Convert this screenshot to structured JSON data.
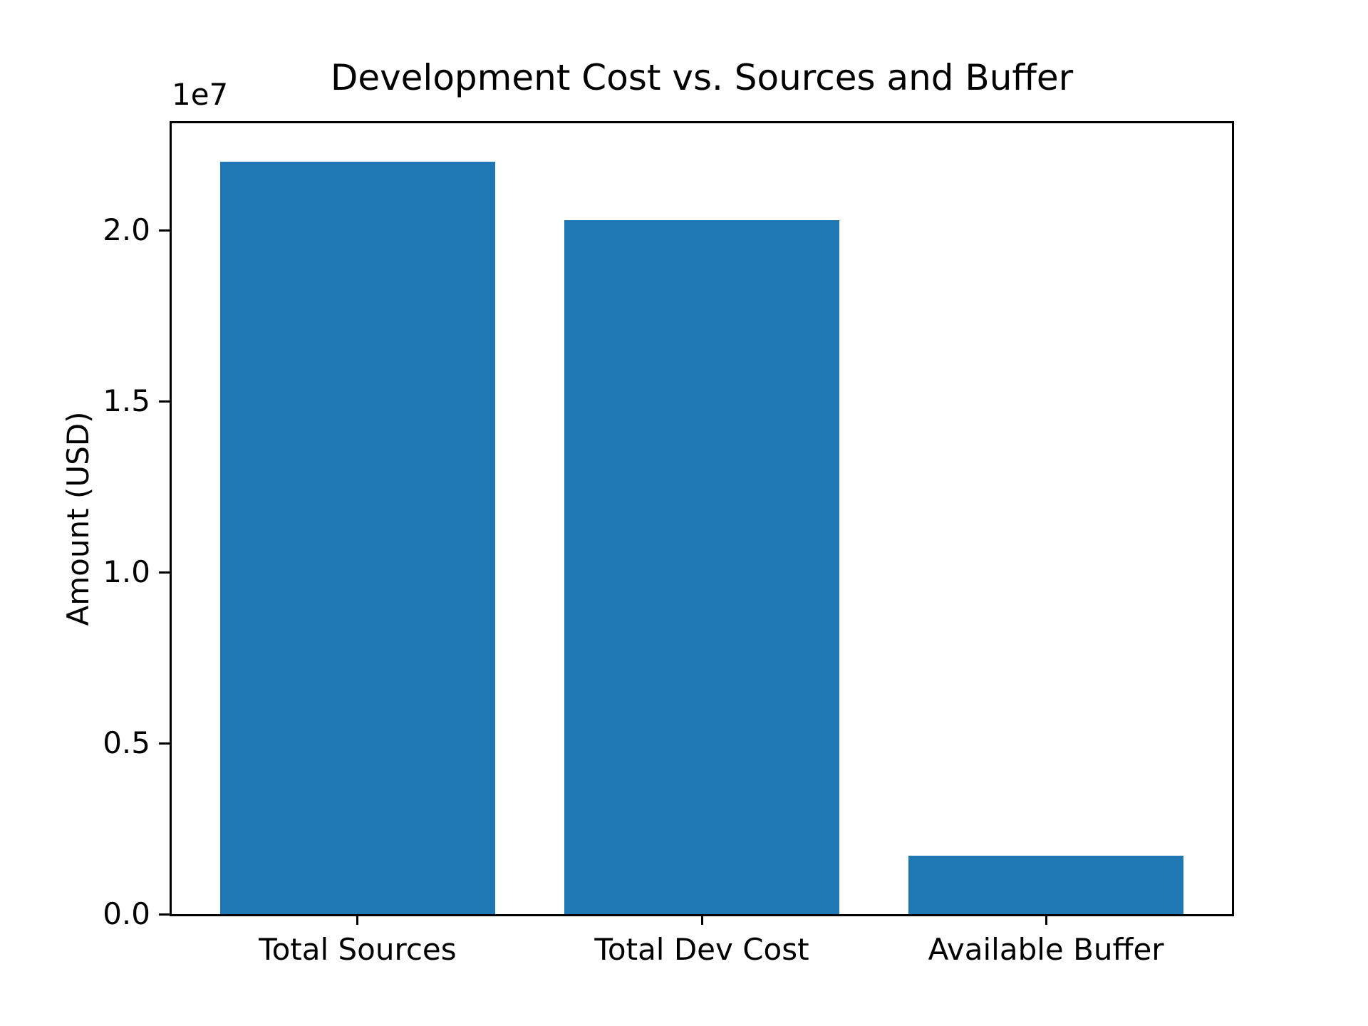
{
  "title": "Development Cost vs. Sources and Buffer",
  "axes": {
    "ylabel": "Amount (USD)",
    "offset_text": "1e7"
  },
  "colors": {
    "bar": "#1f77b4",
    "text": "#000000",
    "background": "#ffffff"
  },
  "chart_data": {
    "type": "bar",
    "title": "Development Cost vs. Sources and Buffer",
    "categories": [
      "Total Sources",
      "Total Dev Cost",
      "Available Buffer"
    ],
    "values": [
      22000000,
      20300000,
      1700000
    ],
    "xlabel": "",
    "ylabel": "Amount (USD)",
    "ylim": [
      0,
      23125000
    ],
    "yticks": [
      0,
      5000000,
      10000000,
      15000000,
      20000000
    ],
    "ytick_labels": [
      "0.0",
      "0.5",
      "1.0",
      "1.5",
      "2.0"
    ],
    "y_offset_text": "1e7",
    "bar_color": "#1f77b4",
    "bar_width_fraction": 0.8,
    "grid": false,
    "legend": false
  }
}
